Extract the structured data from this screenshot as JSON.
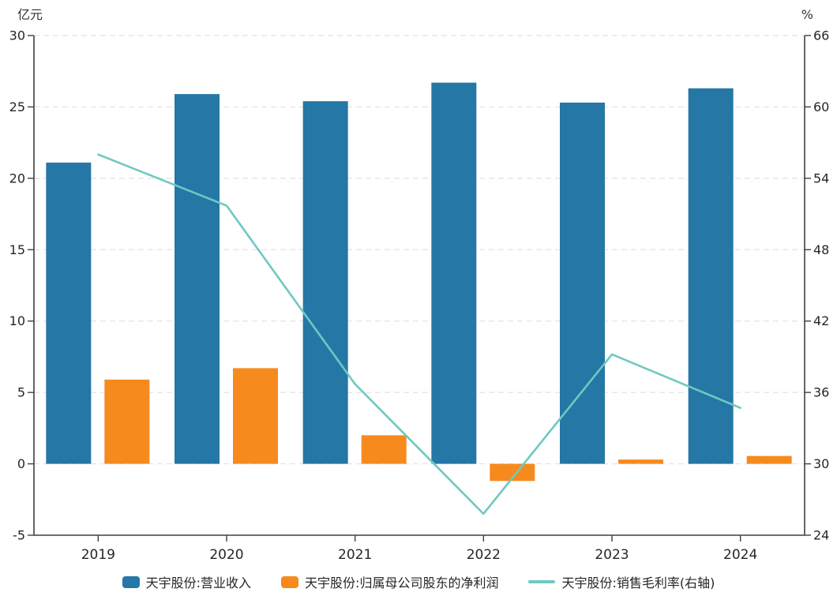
{
  "page": {
    "background": "#ffffff"
  },
  "chart_data": {
    "type": "bar",
    "subtype": "dual-axis bar + line combo",
    "x": [
      "2019",
      "2020",
      "2021",
      "2022",
      "2023",
      "2024"
    ],
    "series": [
      {
        "name": "天宇股份:营业收入",
        "type": "bar",
        "axis": "left",
        "color": "#2577A6",
        "values": [
          21.1,
          25.9,
          25.4,
          26.7,
          25.3,
          26.3
        ]
      },
      {
        "name": "天宇股份:归属母公司股东的净利润",
        "type": "bar",
        "axis": "left",
        "color": "#F68A1D",
        "values": [
          5.9,
          6.7,
          2.0,
          -1.2,
          0.3,
          0.55
        ]
      },
      {
        "name": "天宇股份:销售毛利率(右轴)",
        "type": "line",
        "axis": "right",
        "color": "#6FC8C1",
        "values": [
          56.0,
          51.7,
          36.7,
          25.8,
          39.2,
          34.7
        ]
      }
    ],
    "left_axis": {
      "label": "亿元",
      "min": -5,
      "max": 30,
      "ticks": [
        30,
        25,
        20,
        15,
        10,
        5,
        0,
        -5
      ]
    },
    "right_axis": {
      "label": "%",
      "min": 24,
      "max": 66,
      "ticks": [
        66,
        60,
        54,
        48,
        42,
        36,
        30,
        24
      ]
    },
    "grid": true,
    "gridline_color": "#e2e2e2",
    "axis_color": "#404040",
    "tick_label_color": "#262626",
    "legend_position": "bottom"
  }
}
